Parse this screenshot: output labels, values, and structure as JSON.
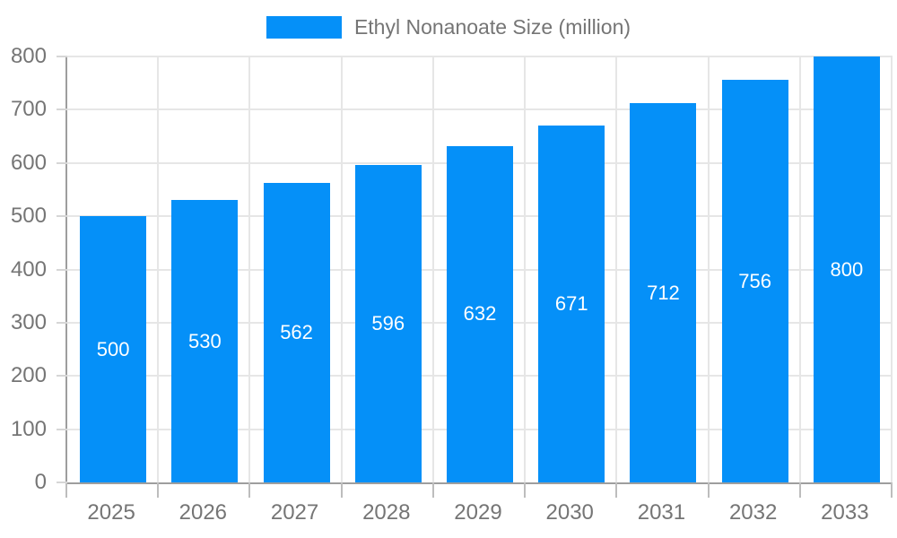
{
  "chart_data": {
    "type": "bar",
    "title": "Ethyl Nonanoate Size (million)",
    "legend_entries": [
      "Ethyl Nonanoate Size (million)"
    ],
    "legend_position": "top-center",
    "categories": [
      "2025",
      "2026",
      "2027",
      "2028",
      "2029",
      "2030",
      "2031",
      "2032",
      "2033"
    ],
    "series": [
      {
        "name": "Ethyl Nonanoate Size (million)",
        "values": [
          500,
          530,
          562,
          596,
          632,
          671,
          712,
          756,
          800
        ]
      }
    ],
    "xlabel": "",
    "ylabel": "",
    "ylim": [
      0,
      800
    ],
    "ytick_interval": 100,
    "yticks": [
      0,
      100,
      200,
      300,
      400,
      500,
      600,
      700,
      800
    ],
    "grid": true,
    "bar_value_labels": "white, centered inside bars",
    "colors": {
      "bar": "#0590f8",
      "grid": "#e6e6e6",
      "axis": "#9e9e9e",
      "tick_text": "#757575",
      "bar_label_text": "#ffffff",
      "background": "#ffffff"
    }
  }
}
